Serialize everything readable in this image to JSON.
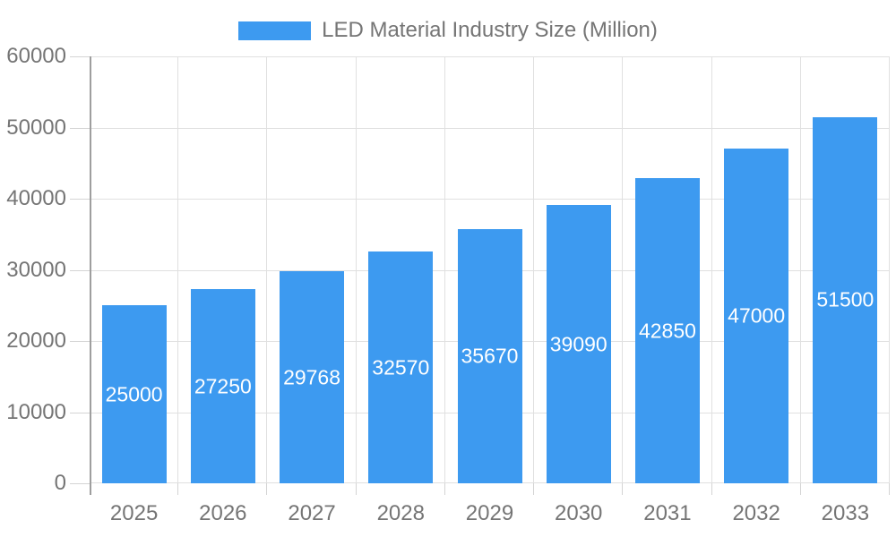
{
  "chart_data": {
    "type": "bar",
    "title": "LED Material Industry Size (Million)",
    "legend": {
      "label": "LED Material Industry Size (Million)",
      "position": "top-center"
    },
    "categories": [
      "2025",
      "2026",
      "2027",
      "2028",
      "2029",
      "2030",
      "2031",
      "2032",
      "2033"
    ],
    "series": [
      {
        "name": "LED Material Industry Size (Million)",
        "values": [
          25000,
          27250,
          29768,
          32570,
          35670,
          39090,
          42850,
          47000,
          51500
        ]
      }
    ],
    "value_labels": [
      "25000",
      "27250",
      "29768",
      "32570",
      "35670",
      "39090",
      "42850",
      "47000",
      "51500"
    ],
    "xlabel": "",
    "ylabel": "",
    "ylim": [
      0,
      60000
    ],
    "ytick_step": 10000,
    "ytick_labels": [
      "0",
      "10000",
      "20000",
      "30000",
      "40000",
      "50000",
      "60000"
    ],
    "grid": true,
    "colors": {
      "bar": "#3D9AF0",
      "value_label_text": "#ffffff",
      "axis_text": "#757575",
      "gridline": "#e0e0e0",
      "axis_line": "#9e9e9e",
      "tick": "#d4d4d4",
      "background": "#ffffff"
    }
  }
}
